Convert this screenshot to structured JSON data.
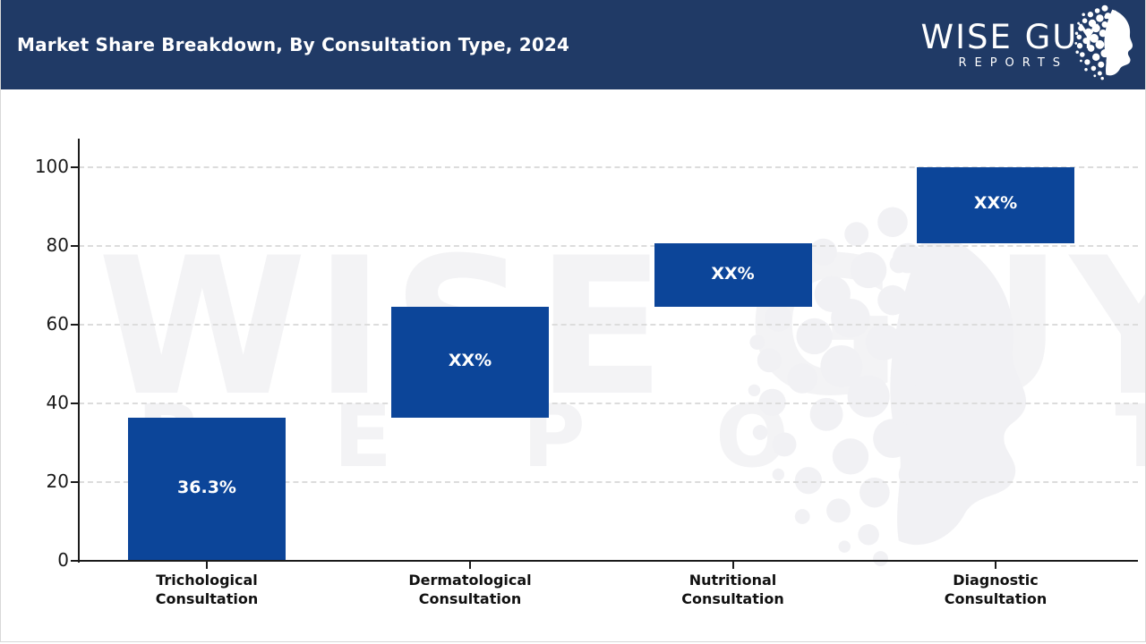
{
  "header": {
    "title": "Market Share Breakdown, By Consultation Type, 2024",
    "logo": {
      "word1": "WISE GUY",
      "word2": "REPORTS"
    }
  },
  "watermark": {
    "line1": "WISE GUY",
    "line2": "R E P O R T S"
  },
  "colors": {
    "header_bg": "#203a66",
    "bar": "#0c4599",
    "bar_label_text": "#ffffff",
    "axis": "#1b1b1b",
    "gridline": "#dcdcdc",
    "watermark": "#f3f3f5",
    "logo_text": "#ffffff"
  },
  "chart_data": {
    "type": "bar",
    "variant": "waterfall",
    "title": "Market Share Breakdown, By Consultation Type, 2024",
    "categories": [
      "Trichological\nConsultation",
      "Dermatological\nConsultation",
      "Nutritional\nConsultation",
      "Diagnostic\nConsultation"
    ],
    "segments": [
      {
        "category": "Trichological Consultation",
        "label": "36.3%",
        "start": 0,
        "end": 36.3,
        "value": 36.3
      },
      {
        "category": "Dermatological Consultation",
        "label": "XX%",
        "start": 36.3,
        "end": 64.5,
        "value": 28.2
      },
      {
        "category": "Nutritional Consultation",
        "label": "XX%",
        "start": 64.5,
        "end": 80.7,
        "value": 16.2
      },
      {
        "category": "Diagnostic Consultation",
        "label": "XX%",
        "start": 80.7,
        "end": 100,
        "value": 19.3
      }
    ],
    "xlabel": "",
    "ylabel": "",
    "yticks": [
      0,
      20,
      40,
      60,
      80,
      100
    ],
    "ylim": [
      0,
      107
    ],
    "grid": {
      "horizontal": true,
      "style": "dashed",
      "at": [
        20,
        40,
        60,
        80,
        100
      ]
    },
    "legend": "none"
  }
}
